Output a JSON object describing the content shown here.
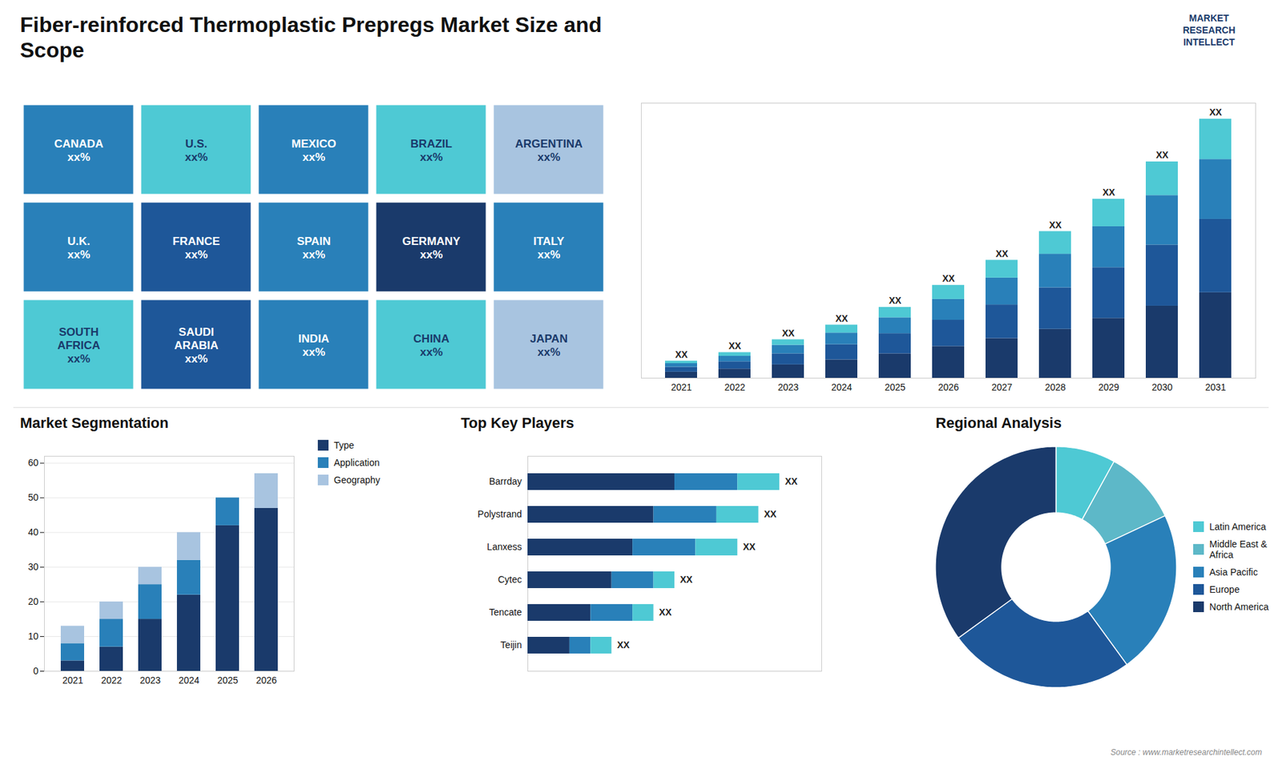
{
  "title": "Fiber-reinforced Thermoplastic Prepregs Market Size and\nScope",
  "annotations": [
    "MARKET\nRESEARCH\nINTELLECT",
    "Source : www.marketresearchintellect.com"
  ],
  "chart_data": [
    {
      "type": "map",
      "categories": [
        "CANADA",
        "U.S.",
        "MEXICO",
        "BRAZIL",
        "ARGENTINA",
        "U.K.",
        "FRANCE",
        "SPAIN",
        "GERMANY",
        "ITALY",
        "SOUTH\nAFRICA",
        "SAUDI\nARABIA",
        "INDIA",
        "CHINA",
        "JAPAN"
      ],
      "annotations": [
        "xx%",
        "xx%",
        "xx%",
        "xx%",
        "xx%",
        "xx%",
        "xx%",
        "xx%",
        "xx%",
        "xx%",
        "xx%",
        "xx%",
        "xx%",
        "xx%",
        "xx%"
      ],
      "colors": [
        "#2980b9",
        "#4ec9d4",
        "#2980b9",
        "#4ec9d4",
        "#a8c4e0",
        "#2980b9",
        "#1e5799",
        "#2980b9",
        "#1a3a6b",
        "#2980b9",
        "#4ec9d4",
        "#1e5799",
        "#2980b9",
        "#4ec9d4",
        "#a8c4e0"
      ]
    },
    {
      "type": "bar",
      "stacked": true,
      "categories": [
        "2021",
        "2022",
        "2023",
        "2024",
        "2025",
        "2026",
        "2027",
        "2028",
        "2029",
        "2030",
        "2031"
      ],
      "series": [
        {
          "color": "#1a3a6b",
          "values": [
            1.0,
            1.5,
            2.2,
            3.0,
            4.0,
            5.2,
            6.5,
            8.0,
            9.8,
            11.8,
            14.0
          ]
        },
        {
          "color": "#1e5799",
          "values": [
            0.8,
            1.2,
            1.8,
            2.5,
            3.3,
            4.3,
            5.5,
            6.8,
            8.3,
            10.0,
            12.0
          ]
        },
        {
          "color": "#2980b9",
          "values": [
            0.6,
            0.9,
            1.4,
            1.9,
            2.6,
            3.4,
            4.4,
            5.5,
            6.7,
            8.1,
            9.8
          ]
        },
        {
          "color": "#4ec9d4",
          "values": [
            0.4,
            0.6,
            0.9,
            1.3,
            1.7,
            2.3,
            2.9,
            3.7,
            4.5,
            5.5,
            6.6
          ]
        }
      ],
      "annotations": [
        "XX",
        "XX",
        "XX",
        "XX",
        "XX",
        "XX",
        "XX",
        "XX",
        "XX",
        "XX",
        "XX"
      ],
      "ylim": [
        0,
        45
      ],
      "tick_labels": "x"
    },
    {
      "type": "bar",
      "title": "Market Segmentation",
      "stacked": true,
      "categories": [
        "2021",
        "2022",
        "2023",
        "2024",
        "2025",
        "2026"
      ],
      "series": [
        {
          "name": "Type",
          "color": "#1a3a6b",
          "values": [
            3,
            7,
            15,
            22,
            42,
            47
          ]
        },
        {
          "name": "Application",
          "color": "#2980b9",
          "values": [
            5,
            8,
            10,
            10,
            8,
            0
          ]
        },
        {
          "name": "Geography",
          "color": "#a8c4e0",
          "values": [
            5,
            5,
            5,
            8,
            0,
            10
          ]
        }
      ],
      "ylim": [
        0,
        62
      ],
      "yticks": [
        0,
        10,
        20,
        30,
        40,
        50,
        60
      ],
      "grid": true,
      "legend": "right"
    },
    {
      "type": "bar",
      "title": "Top Key Players",
      "orientation": "horizontal",
      "stacked": true,
      "categories": [
        "Barrday",
        "Polystrand",
        "Lanxess",
        "Cytec",
        "Tencate",
        "Teijin"
      ],
      "series": [
        {
          "color": "#1a3a6b",
          "values": [
            7,
            6,
            5,
            4,
            3,
            2
          ]
        },
        {
          "color": "#2980b9",
          "values": [
            3,
            3,
            3,
            2,
            2,
            1
          ]
        },
        {
          "color": "#4ec9d4",
          "values": [
            2,
            2,
            2,
            1,
            1,
            1
          ]
        }
      ],
      "annotations": [
        "XX",
        "XX",
        "XX",
        "XX",
        "XX",
        "XX"
      ],
      "xlim": [
        0,
        14
      ],
      "tick_labels": "y"
    },
    {
      "type": "pie",
      "title": "Regional Analysis",
      "categories": [
        "Latin America",
        "Middle East &\nAfrica",
        "Asia Pacific",
        "Europe",
        "North America"
      ],
      "values": [
        8,
        10,
        22,
        25,
        35
      ],
      "colors": [
        "#4ec9d4",
        "#5db8c8",
        "#2980b9",
        "#1e5799",
        "#1a3a6b"
      ],
      "legend": "right"
    }
  ]
}
